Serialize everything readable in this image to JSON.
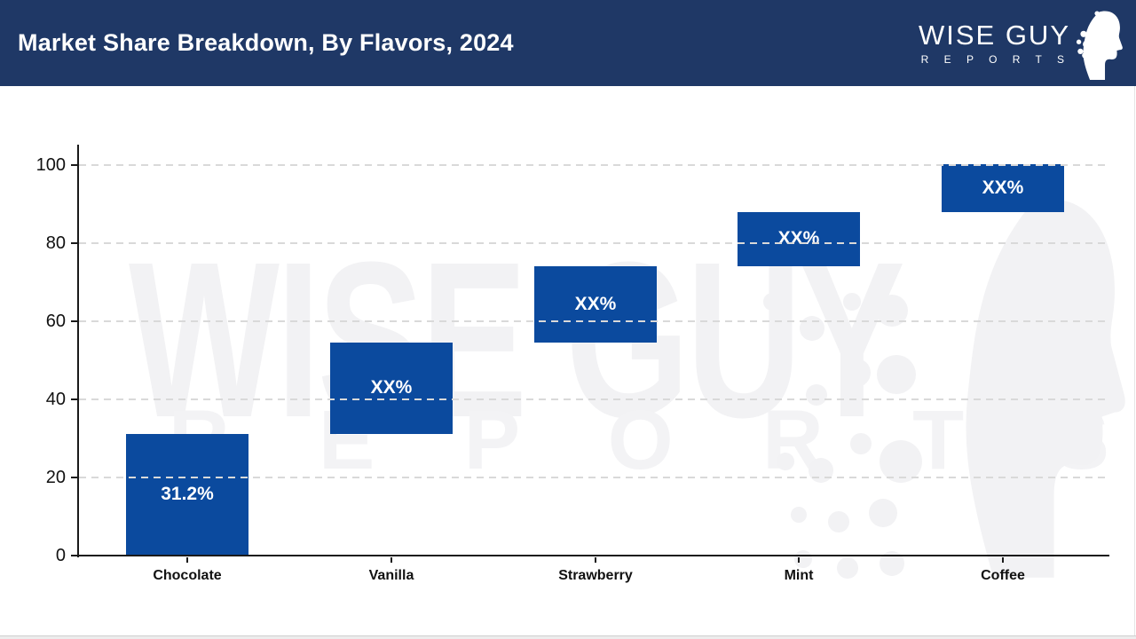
{
  "header": {
    "title": "Market Share Breakdown, By Flavors, 2024",
    "logo": {
      "brand": "WISE GUY",
      "sub": "R E P O R T S"
    }
  },
  "colors": {
    "header_bg": "#1f3866",
    "bar": "#0b4a9e",
    "grid": "#d9d9d9",
    "axis": "#1a1a1a",
    "watermark": "#f2f2f4",
    "value_label": "#ffffff"
  },
  "chart_data": {
    "type": "bar",
    "subtype": "waterfall",
    "title": "Market Share Breakdown, By Flavors, 2024",
    "categories": [
      "Chocolate",
      "Vanilla",
      "Strawberry",
      "Mint",
      "Coffee"
    ],
    "series": [
      {
        "name": "Market share (cumulative waterfall)",
        "segments": [
          {
            "category": "Chocolate",
            "start": 0,
            "end": 31.2,
            "label": "31.2%"
          },
          {
            "category": "Vanilla",
            "start": 31.2,
            "end": 54.5,
            "label": "XX%"
          },
          {
            "category": "Strawberry",
            "start": 54.5,
            "end": 74.1,
            "label": "XX%"
          },
          {
            "category": "Mint",
            "start": 74.1,
            "end": 88.0,
            "label": "XX%"
          },
          {
            "category": "Coffee",
            "start": 88.0,
            "end": 100.2,
            "label": "XX%"
          }
        ]
      }
    ],
    "yticks": [
      0,
      20,
      40,
      60,
      80,
      100
    ],
    "ylim": [
      0,
      105
    ],
    "xlabel": "",
    "ylabel": "",
    "grid": "dashed-horizontal",
    "legend": "none",
    "watermark_text": [
      "WISE GUY",
      "R E P O R T S"
    ]
  }
}
